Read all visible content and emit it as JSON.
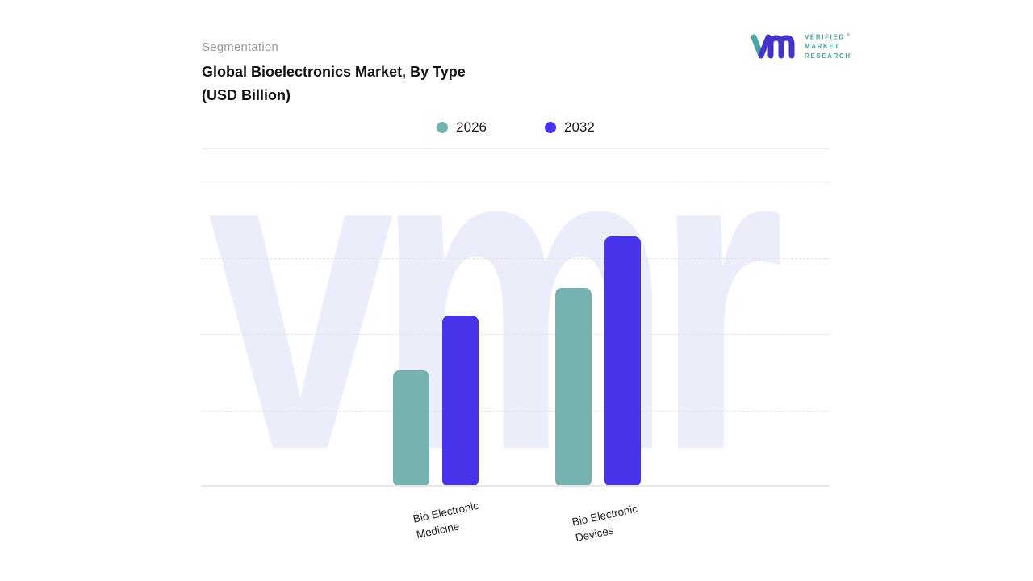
{
  "header": {
    "eyebrow": "Segmentation",
    "title_line1": "Global Bioelectronics Market, By Type",
    "title_line2": "(USD Billion)"
  },
  "logo": {
    "lines": [
      "VERIFIED",
      "MARKET",
      "RESEARCH"
    ],
    "registered": "®"
  },
  "watermark": "vmr",
  "chart_data": {
    "type": "bar",
    "title": "Global Bioelectronics Market, By Type (USD Billion)",
    "units": "USD Billion",
    "categories": [
      "Bio Electronic Medicine",
      "Bio Electronic Devices"
    ],
    "series": [
      {
        "name": "2026",
        "color": "#75b2b0",
        "values": [
          38,
          65
        ]
      },
      {
        "name": "2032",
        "color": "#4733ea",
        "values": [
          56,
          82
        ]
      }
    ],
    "ylim": [
      0,
      100
    ],
    "y_axis_labels_visible": false,
    "grid": "dashed-horizontal",
    "legend_position": "top-center"
  }
}
